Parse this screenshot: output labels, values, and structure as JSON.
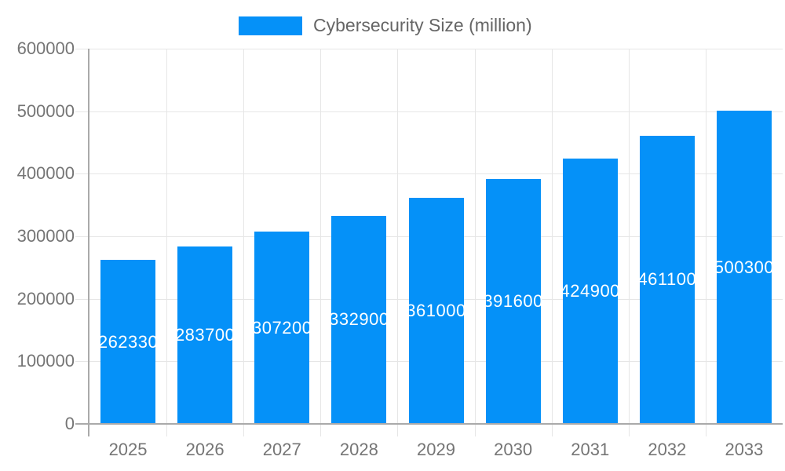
{
  "legend": {
    "label": "Cybersecurity Size (million)"
  },
  "chart_data": {
    "type": "bar",
    "title": "",
    "legend_entries": [
      "Cybersecurity Size (million)"
    ],
    "legend_position": "top",
    "categories": [
      "2025",
      "2026",
      "2027",
      "2028",
      "2029",
      "2030",
      "2031",
      "2032",
      "2033"
    ],
    "values": [
      262330,
      283700,
      307200,
      332900,
      361000,
      391600,
      424900,
      461100,
      500300
    ],
    "bar_value_labels": [
      "262330",
      "283700",
      "307200",
      "332900",
      "361000",
      "391600",
      "424900",
      "461100",
      "500300"
    ],
    "xlabel": "",
    "ylabel": "",
    "ylim": [
      0,
      600000
    ],
    "ytick_step": 100000,
    "yticks": [
      "0",
      "100000",
      "200000",
      "300000",
      "400000",
      "500000",
      "600000"
    ],
    "grid": true,
    "colors": {
      "bar": "#0591f8",
      "gridline": "#e6e6e6",
      "axis_line": "#aaaaaa",
      "axis_text": "#757575",
      "legend_text": "#666666",
      "bar_label": "#ffffff"
    }
  }
}
